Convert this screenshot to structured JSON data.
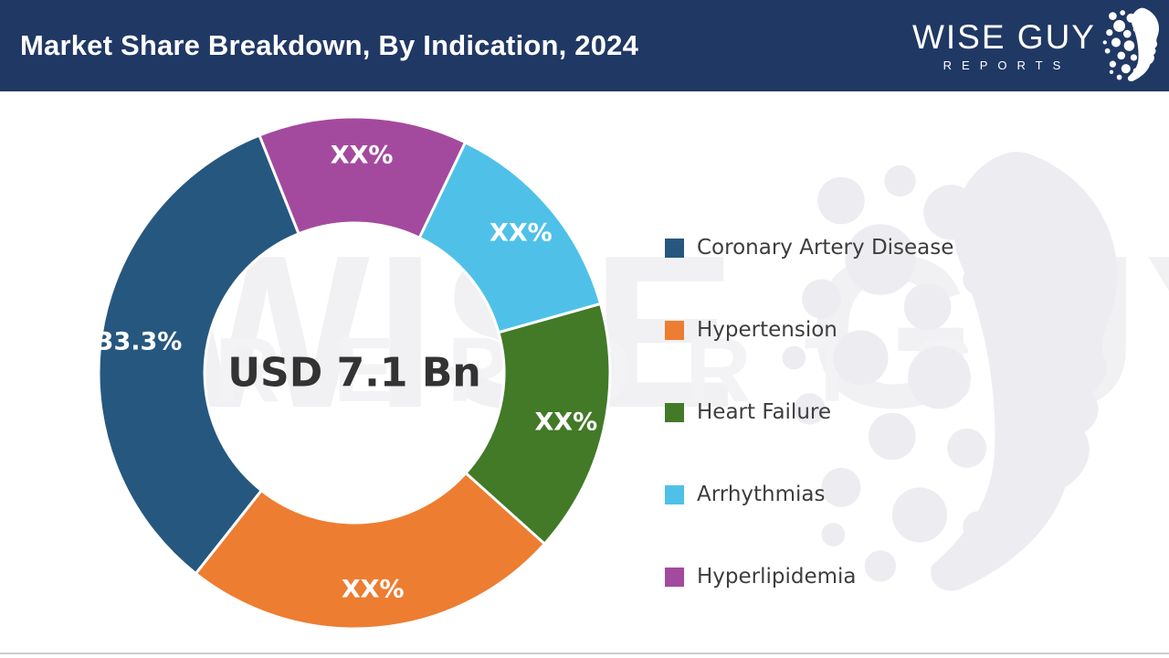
{
  "header": {
    "title": "Market Share Breakdown, By Indication, 2024",
    "logo_line1": "WISE GUY",
    "logo_line2": "REPORTS",
    "bg_color": "#203864"
  },
  "watermark": {
    "line1": "WISE GUY",
    "line2": "REPORTS"
  },
  "chart_data": {
    "type": "pie",
    "donut": true,
    "title": "Market Share Breakdown, By Indication, 2024",
    "center_label": "USD 7.1 Bn",
    "start_angle_deg": -21.8,
    "direction": "counterclockwise",
    "legend_position": "right",
    "segments": [
      {
        "label": "Coronary Artery Disease",
        "value_pct": 33.3,
        "display_label": "33.3%",
        "color": "#26577F"
      },
      {
        "label": "Hypertension",
        "value_pct": 24.0,
        "display_label": "XX%",
        "color": "#ED7D31"
      },
      {
        "label": "Heart Failure",
        "value_pct": 16.0,
        "display_label": "XX%",
        "color": "#427A28"
      },
      {
        "label": "Arrhythmias",
        "value_pct": 13.5,
        "display_label": "XX%",
        "color": "#4FC1E8"
      },
      {
        "label": "Hyperlipidemia",
        "value_pct": 13.2,
        "display_label": "XX%",
        "color": "#A44A9E"
      }
    ]
  }
}
